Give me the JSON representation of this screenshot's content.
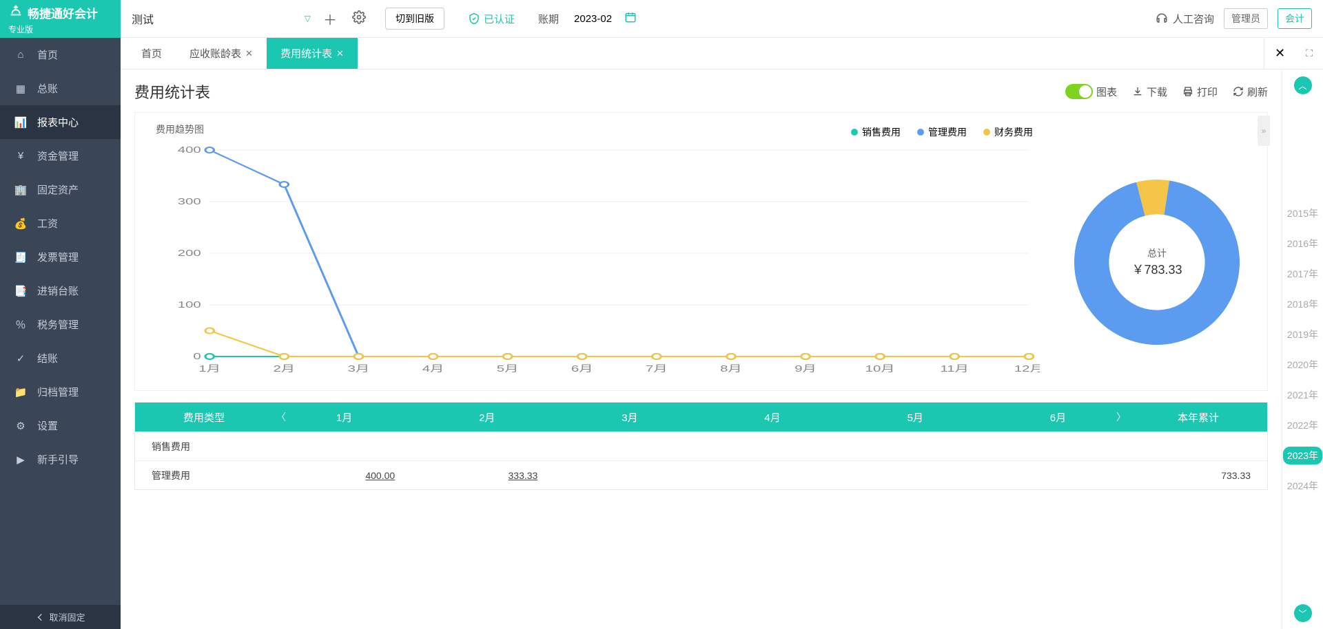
{
  "brand": {
    "name": "畅捷通好会计",
    "edition": "专业版"
  },
  "sidebar": {
    "items": [
      {
        "label": "首页"
      },
      {
        "label": "总账"
      },
      {
        "label": "报表中心",
        "active": true
      },
      {
        "label": "资金管理"
      },
      {
        "label": "固定资产"
      },
      {
        "label": "工资"
      },
      {
        "label": "发票管理"
      },
      {
        "label": "进销台账"
      },
      {
        "label": "税务管理"
      },
      {
        "label": "结账"
      },
      {
        "label": "归档管理"
      },
      {
        "label": "设置"
      },
      {
        "label": "新手引导"
      }
    ],
    "pin": "取消固定"
  },
  "topbar": {
    "workspace": "测试",
    "old_version": "切到旧版",
    "verified": "已认证",
    "period_label": "账期",
    "period_value": "2023-02",
    "support": "人工咨询",
    "role_admin": "管理员",
    "role_acct": "会计"
  },
  "tabs": [
    {
      "label": "首页",
      "closable": false
    },
    {
      "label": "应收账龄表",
      "closable": true
    },
    {
      "label": "费用统计表",
      "closable": true,
      "active": true
    }
  ],
  "page": {
    "title": "费用统计表",
    "actions": {
      "chart": "图表",
      "download": "下载",
      "print": "打印",
      "refresh": "刷新"
    }
  },
  "chart": {
    "title": "费用趋势图",
    "type": "line",
    "categories": [
      "1月",
      "2月",
      "3月",
      "4月",
      "5月",
      "6月",
      "7月",
      "8月",
      "9月",
      "10月",
      "11月",
      "12月"
    ],
    "ylim": [
      0,
      400
    ],
    "ytick_step": 100,
    "series": [
      {
        "name": "销售费用",
        "color": "#1bc7b1",
        "values": [
          0,
          0,
          0,
          0,
          0,
          0,
          0,
          0,
          0,
          0,
          0,
          0
        ],
        "marker": "circle"
      },
      {
        "name": "管理费用",
        "color": "#5b9bf0",
        "values": [
          400,
          333.33,
          0,
          0,
          0,
          0,
          0,
          0,
          0,
          0,
          0,
          0
        ],
        "marker": "circle"
      },
      {
        "name": "财务费用",
        "color": "#f5c547",
        "values": [
          50,
          0,
          0,
          0,
          0,
          0,
          0,
          0,
          0,
          0,
          0,
          0
        ],
        "marker": "circle"
      }
    ],
    "grid_color": "#eeeeee",
    "axis_color": "#cccccc",
    "background": "#ffffff"
  },
  "donut": {
    "type": "pie",
    "center_label": "总计",
    "center_value": "￥783.33",
    "slices": [
      {
        "name": "管理费用",
        "color": "#5b9bf0",
        "value": 733.33
      },
      {
        "name": "财务费用",
        "color": "#f5c547",
        "value": 50
      },
      {
        "name": "销售费用",
        "color": "#1bc7b1",
        "value": 0
      }
    ],
    "inner_radius": 0.58
  },
  "table": {
    "type_header": "费用类型",
    "month_headers": [
      "1月",
      "2月",
      "3月",
      "4月",
      "5月",
      "6月"
    ],
    "total_header": "本年累计",
    "rows": [
      {
        "type": "销售费用",
        "cells": [
          "",
          "",
          "",
          "",
          "",
          ""
        ],
        "total": ""
      },
      {
        "type": "管理费用",
        "cells": [
          "400.00",
          "333.33",
          "",
          "",
          "",
          ""
        ],
        "total": "733.33",
        "link": [
          true,
          true,
          false,
          false,
          false,
          false
        ]
      }
    ]
  },
  "years": {
    "list": [
      "2015年",
      "2016年",
      "2017年",
      "2018年",
      "2019年",
      "2020年",
      "2021年",
      "2022年",
      "2023年",
      "2024年"
    ],
    "active": "2023年"
  },
  "colors": {
    "primary": "#1bc7b1",
    "sidebar": "#3a4556"
  }
}
